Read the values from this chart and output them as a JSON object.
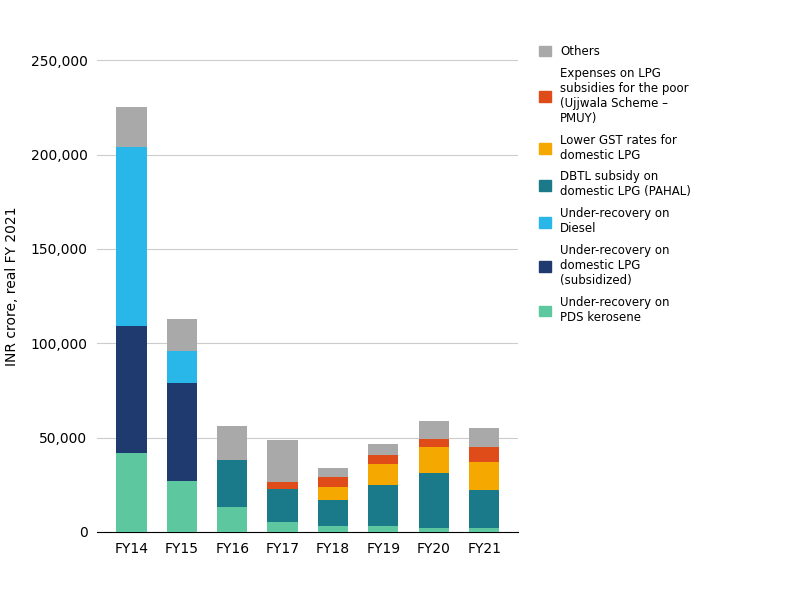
{
  "categories": [
    "FY14",
    "FY15",
    "FY16",
    "FY17",
    "FY18",
    "FY19",
    "FY20",
    "FY21"
  ],
  "series": [
    {
      "label": "Under-recovery on\nPDS kerosene",
      "color": "#5DC8A0",
      "values": [
        42000,
        27000,
        13000,
        5000,
        3000,
        3000,
        2000,
        2000
      ]
    },
    {
      "label": "Under-recovery on\ndomestic LPG\n(subsidized)",
      "color": "#1E3A6E",
      "values": [
        67000,
        52000,
        0,
        0,
        0,
        0,
        0,
        0
      ]
    },
    {
      "label": "Under-recovery on\nDiesel",
      "color": "#29B6E8",
      "values": [
        95000,
        17000,
        0,
        0,
        0,
        0,
        0,
        0
      ]
    },
    {
      "label": "DBTL subsidy on\ndomestic LPG (PAHAL)",
      "color": "#1A7A8A",
      "values": [
        0,
        0,
        25000,
        18000,
        14000,
        22000,
        29000,
        20000
      ]
    },
    {
      "label": "Lower GST rates for\ndomestic LPG",
      "color": "#F5A800",
      "values": [
        0,
        0,
        0,
        0,
        7000,
        11000,
        14000,
        15000
      ]
    },
    {
      "label": "Expenses on LPG\nsubsidies for the poor\n(Ujjwala Scheme –\nPMUY)",
      "color": "#E04B1A",
      "values": [
        0,
        0,
        0,
        3500,
        5000,
        4500,
        4000,
        8000
      ]
    },
    {
      "label": "Others",
      "color": "#A9A9A9",
      "values": [
        21000,
        17000,
        18000,
        22000,
        5000,
        6000,
        10000,
        10000
      ]
    }
  ],
  "ylabel": "INR crore, real FY 2021",
  "ylim": [
    0,
    260000
  ],
  "yticks": [
    0,
    50000,
    100000,
    150000,
    200000,
    250000
  ],
  "ytick_labels": [
    "0",
    "50,000",
    "100,000",
    "150,000",
    "200,000",
    "250,000"
  ],
  "background_color": "#ffffff",
  "bar_width": 0.6,
  "figsize": [
    8.1,
    5.91
  ],
  "dpi": 100
}
